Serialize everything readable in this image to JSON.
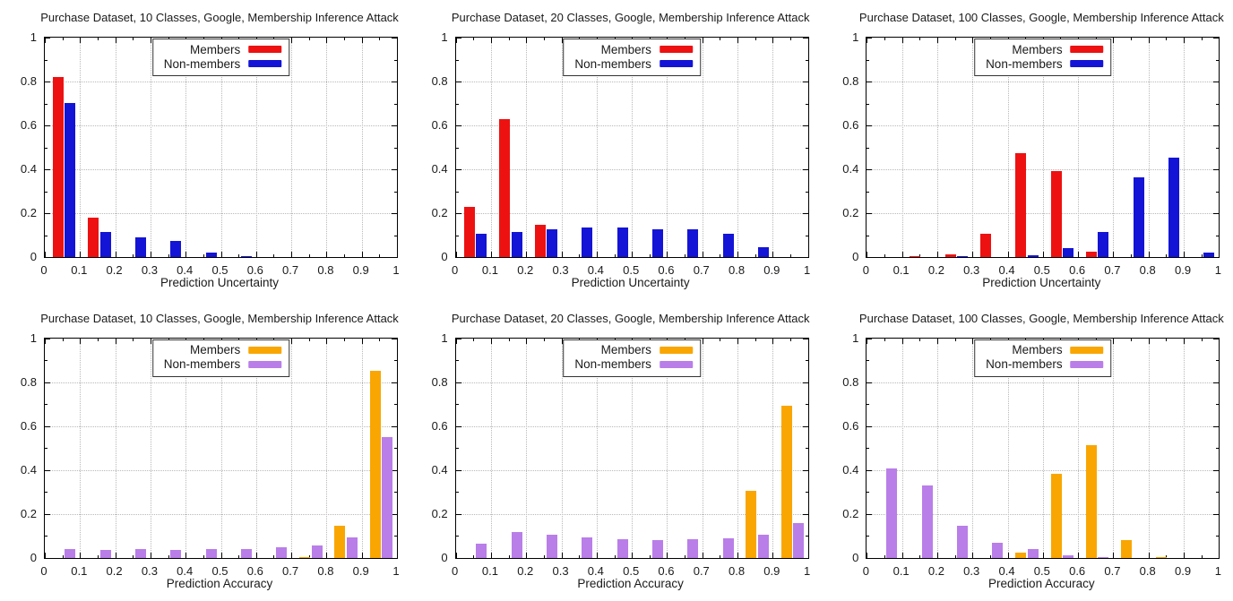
{
  "page": {
    "background": "#ffffff"
  },
  "legend": {
    "members_label": "Members",
    "non_members_label": "Non-members"
  },
  "colors": {
    "uncertainty_members": "#ee1111",
    "uncertainty_non_members": "#1414d6",
    "accuracy_members": "#f9a602",
    "accuracy_non_members": "#b97ee8",
    "grid": "#b9b9b9",
    "axis": "#000000"
  },
  "chart_data": [
    {
      "type": "bar",
      "title": "Purchase Dataset, 10 Classes, Google, Membership Inference Attack",
      "xlabel": "Prediction Uncertainty",
      "ylabel": "",
      "xlim": [
        0,
        1
      ],
      "ylim": [
        0,
        1
      ],
      "grid": true,
      "legend_position": "top-center",
      "categories": [
        0.05,
        0.15,
        0.25,
        0.35,
        0.45,
        0.55,
        0.65,
        0.75,
        0.85,
        0.95
      ],
      "xtick_labels": [
        "0",
        "0.1",
        "0.2",
        "0.3",
        "0.4",
        "0.5",
        "0.6",
        "0.7",
        "0.8",
        "0.9",
        "1"
      ],
      "ytick_labels": [
        "0",
        "0.2",
        "0.4",
        "0.6",
        "0.8",
        "1"
      ],
      "series": [
        {
          "name": "Members",
          "color": "#ee1111",
          "values": [
            0.82,
            0.18,
            0,
            0,
            0,
            0,
            0,
            0,
            0,
            0
          ]
        },
        {
          "name": "Non-members",
          "color": "#1414d6",
          "values": [
            0.7,
            0.115,
            0.09,
            0.075,
            0.02,
            0.005,
            0,
            0,
            0,
            0
          ]
        }
      ]
    },
    {
      "type": "bar",
      "title": "Purchase Dataset, 20 Classes, Google, Membership Inference Attack",
      "xlabel": "Prediction Uncertainty",
      "ylabel": "",
      "xlim": [
        0,
        1
      ],
      "ylim": [
        0,
        1
      ],
      "grid": true,
      "legend_position": "top-center",
      "categories": [
        0.05,
        0.15,
        0.25,
        0.35,
        0.45,
        0.55,
        0.65,
        0.75,
        0.85,
        0.95
      ],
      "xtick_labels": [
        "0",
        "0.1",
        "0.2",
        "0.3",
        "0.4",
        "0.5",
        "0.6",
        "0.7",
        "0.8",
        "0.9",
        "1"
      ],
      "ytick_labels": [
        "0",
        "0.2",
        "0.4",
        "0.6",
        "0.8",
        "1"
      ],
      "series": [
        {
          "name": "Members",
          "color": "#ee1111",
          "values": [
            0.23,
            0.63,
            0.145,
            0,
            0,
            0,
            0,
            0,
            0,
            0
          ]
        },
        {
          "name": "Non-members",
          "color": "#1414d6",
          "values": [
            0.105,
            0.115,
            0.125,
            0.135,
            0.135,
            0.125,
            0.125,
            0.105,
            0.045,
            0
          ]
        }
      ]
    },
    {
      "type": "bar",
      "title": "Purchase Dataset, 100 Classes, Google, Membership Inference Attack",
      "xlabel": "Prediction Uncertainty",
      "ylabel": "",
      "xlim": [
        0,
        1
      ],
      "ylim": [
        0,
        1
      ],
      "grid": true,
      "legend_position": "top-center",
      "categories": [
        0.05,
        0.15,
        0.25,
        0.35,
        0.45,
        0.55,
        0.65,
        0.75,
        0.85,
        0.95
      ],
      "xtick_labels": [
        "0",
        "0.1",
        "0.2",
        "0.3",
        "0.4",
        "0.5",
        "0.6",
        "0.7",
        "0.8",
        "0.9",
        "1"
      ],
      "ytick_labels": [
        "0",
        "0.2",
        "0.4",
        "0.6",
        "0.8",
        "1"
      ],
      "series": [
        {
          "name": "Members",
          "color": "#ee1111",
          "values": [
            0,
            0.002,
            0.012,
            0.105,
            0.475,
            0.39,
            0.025,
            0,
            0,
            0
          ]
        },
        {
          "name": "Non-members",
          "color": "#1414d6",
          "values": [
            0,
            0,
            0.002,
            0,
            0.008,
            0.04,
            0.115,
            0.365,
            0.455,
            0.022
          ]
        }
      ]
    },
    {
      "type": "bar",
      "title": "Purchase Dataset, 10 Classes, Google, Membership Inference Attack",
      "xlabel": "Prediction Accuracy",
      "ylabel": "",
      "xlim": [
        0,
        1
      ],
      "ylim": [
        0,
        1
      ],
      "grid": true,
      "legend_position": "top-center",
      "categories": [
        0.05,
        0.15,
        0.25,
        0.35,
        0.45,
        0.55,
        0.65,
        0.75,
        0.85,
        0.95
      ],
      "xtick_labels": [
        "0",
        "0.1",
        "0.2",
        "0.3",
        "0.4",
        "0.5",
        "0.6",
        "0.7",
        "0.8",
        "0.9",
        "1"
      ],
      "ytick_labels": [
        "0",
        "0.2",
        "0.4",
        "0.6",
        "0.8",
        "1"
      ],
      "series": [
        {
          "name": "Members",
          "color": "#f9a602",
          "values": [
            0,
            0,
            0,
            0,
            0,
            0,
            0,
            0.002,
            0.145,
            0.855
          ]
        },
        {
          "name": "Non-members",
          "color": "#b97ee8",
          "values": [
            0.04,
            0.038,
            0.04,
            0.038,
            0.04,
            0.042,
            0.048,
            0.058,
            0.092,
            0.55
          ]
        }
      ]
    },
    {
      "type": "bar",
      "title": "Purchase Dataset, 20 Classes, Google, Membership Inference Attack",
      "xlabel": "Prediction Accuracy",
      "ylabel": "",
      "xlim": [
        0,
        1
      ],
      "ylim": [
        0,
        1
      ],
      "grid": true,
      "legend_position": "top-center",
      "categories": [
        0.05,
        0.15,
        0.25,
        0.35,
        0.45,
        0.55,
        0.65,
        0.75,
        0.85,
        0.95
      ],
      "xtick_labels": [
        "0",
        "0.1",
        "0.2",
        "0.3",
        "0.4",
        "0.5",
        "0.6",
        "0.7",
        "0.8",
        "0.9",
        "1"
      ],
      "ytick_labels": [
        "0",
        "0.2",
        "0.4",
        "0.6",
        "0.8",
        "1"
      ],
      "series": [
        {
          "name": "Members",
          "color": "#f9a602",
          "values": [
            0,
            0,
            0,
            0,
            0,
            0,
            0,
            0,
            0.305,
            0.695
          ]
        },
        {
          "name": "Non-members",
          "color": "#b97ee8",
          "values": [
            0.065,
            0.12,
            0.105,
            0.095,
            0.085,
            0.08,
            0.085,
            0.088,
            0.108,
            0.16
          ]
        }
      ]
    },
    {
      "type": "bar",
      "title": "Purchase Dataset, 100 Classes, Google, Membership Inference Attack",
      "xlabel": "Prediction Accuracy",
      "ylabel": "",
      "xlim": [
        0,
        1
      ],
      "ylim": [
        0,
        1
      ],
      "grid": true,
      "legend_position": "top-center",
      "categories": [
        0.05,
        0.15,
        0.25,
        0.35,
        0.45,
        0.55,
        0.65,
        0.75,
        0.85,
        0.95
      ],
      "xtick_labels": [
        "0",
        "0.1",
        "0.2",
        "0.3",
        "0.4",
        "0.5",
        "0.6",
        "0.7",
        "0.8",
        "0.9",
        "1"
      ],
      "ytick_labels": [
        "0",
        "0.2",
        "0.4",
        "0.6",
        "0.8",
        "1"
      ],
      "series": [
        {
          "name": "Members",
          "color": "#f9a602",
          "values": [
            0,
            0,
            0,
            0,
            0.025,
            0.385,
            0.515,
            0.08,
            0.005,
            0
          ]
        },
        {
          "name": "Non-members",
          "color": "#b97ee8",
          "values": [
            0.41,
            0.33,
            0.145,
            0.068,
            0.04,
            0.012,
            0.005,
            0,
            0,
            0
          ]
        }
      ]
    }
  ]
}
